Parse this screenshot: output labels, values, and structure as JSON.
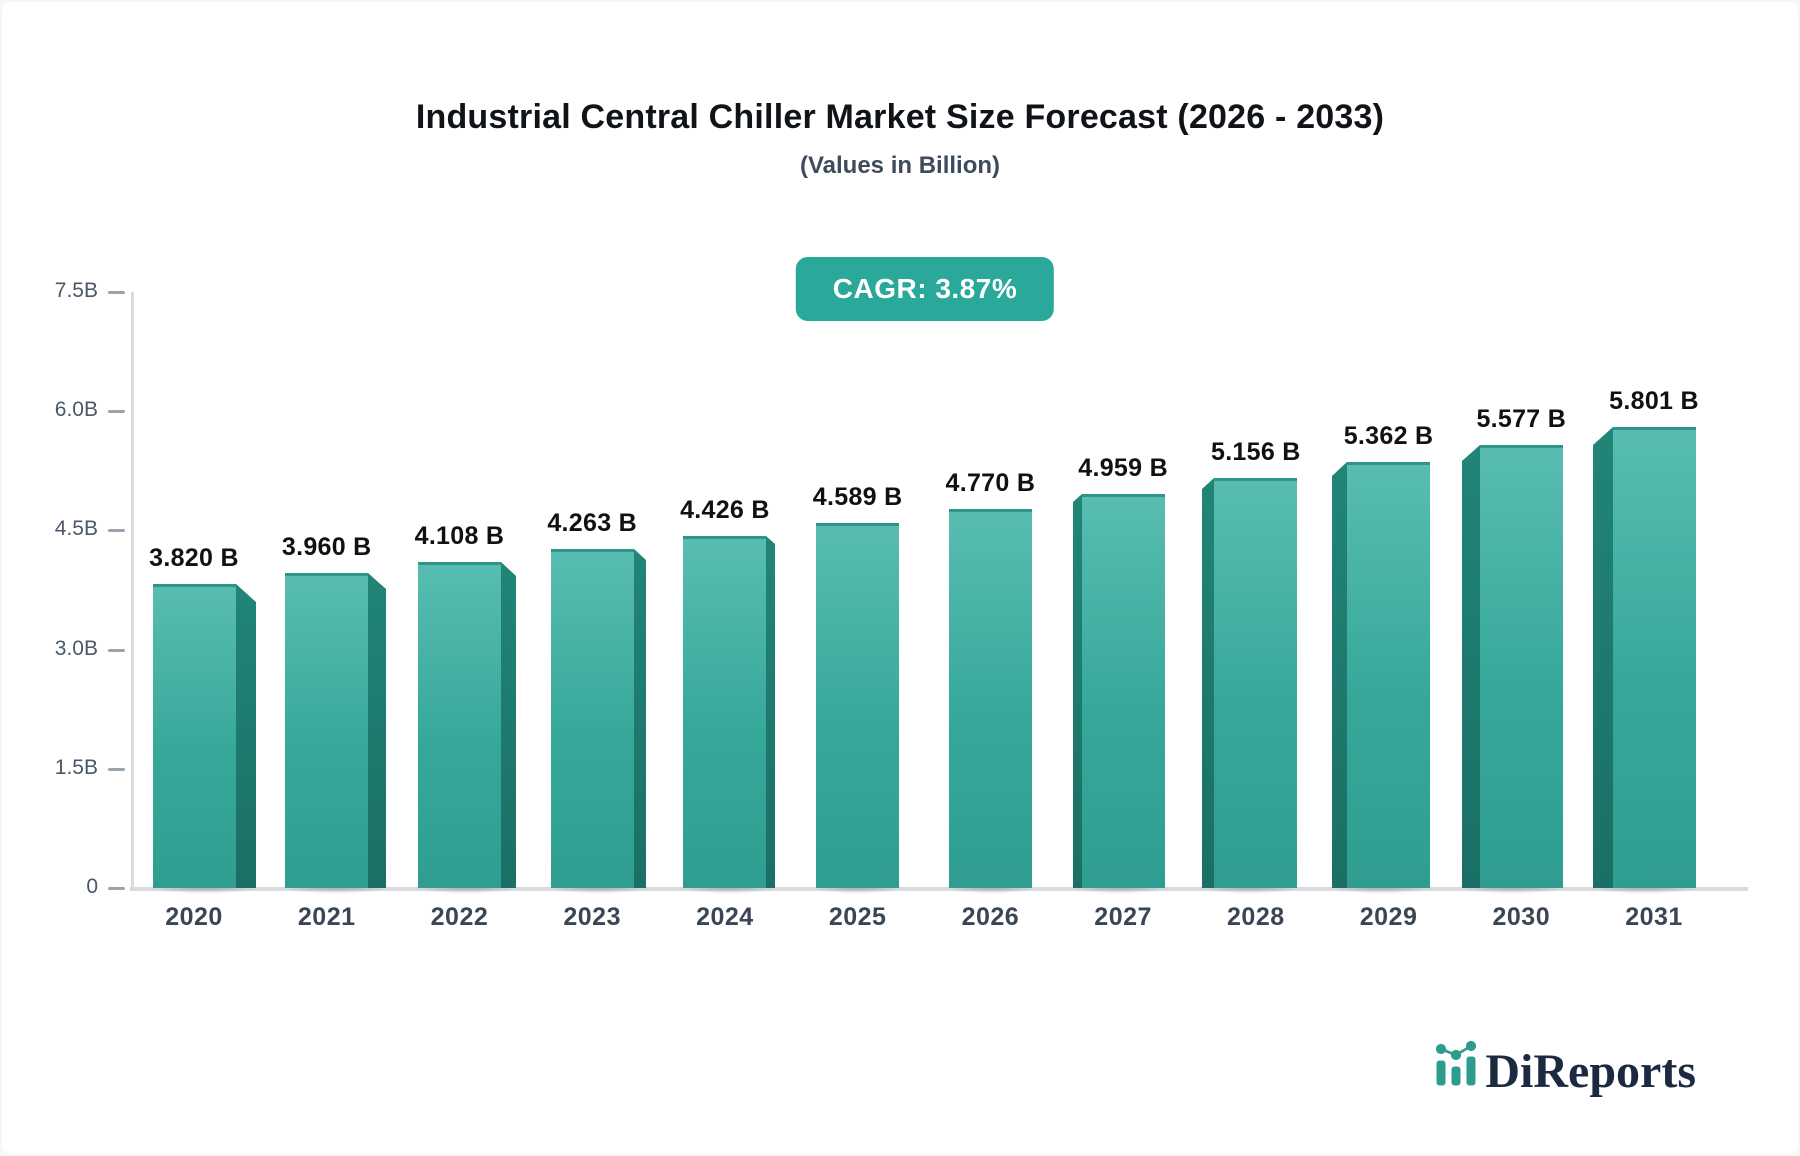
{
  "header": {
    "title": "Industrial Central Chiller Market Size Forecast (2026 - 2033)",
    "subtitle": "(Values in Billion)",
    "cagr_label": "CAGR: 3.87%"
  },
  "chart_data": {
    "type": "bar",
    "title": "Industrial Central Chiller Market Size Forecast (2026 - 2033)",
    "subtitle": "(Values in Billion)",
    "unit": "Billion",
    "cagr": "3.87%",
    "categories": [
      "2020",
      "2021",
      "2022",
      "2023",
      "2024",
      "2025",
      "2026",
      "2027",
      "2028",
      "2029",
      "2030",
      "2031"
    ],
    "values": [
      3.82,
      3.96,
      4.108,
      4.263,
      4.426,
      4.589,
      4.77,
      4.959,
      5.156,
      5.362,
      5.577,
      5.801
    ],
    "value_labels": [
      "3.820 B",
      "3.960 B",
      "4.108 B",
      "4.263 B",
      "4.426 B",
      "4.589 B",
      "4.770 B",
      "4.959 B",
      "5.156 B",
      "5.362 B",
      "5.577 B",
      "5.801 B"
    ],
    "yticks": [
      {
        "label": "7.5B",
        "value": 7.5
      },
      {
        "label": "6.0B",
        "value": 6.0
      },
      {
        "label": "4.5B",
        "value": 4.5
      },
      {
        "label": "3.0B",
        "value": 3.0
      },
      {
        "label": "1.5B",
        "value": 1.5
      },
      {
        "label": "0",
        "value": 0
      }
    ],
    "ylim": [
      0,
      7.5
    ],
    "xlabel": "",
    "ylabel": "",
    "grid": false,
    "legend": "none",
    "style": "3d-perspective-bars"
  },
  "branding": {
    "logo_text": "DiReports",
    "logo_icon": "mini-bar-chart-icon"
  },
  "theme": {
    "accent": "#2aa89a",
    "bar_top": "#58bdb0",
    "bar_mid": "#36a89a",
    "bar_bottom": "#2f9e91",
    "bar_edge": "#2d9589",
    "side_top": "#218578",
    "side_bottom": "#1b6f64",
    "axis": "#d8dce1",
    "logo_color": "#2d9c8f"
  }
}
